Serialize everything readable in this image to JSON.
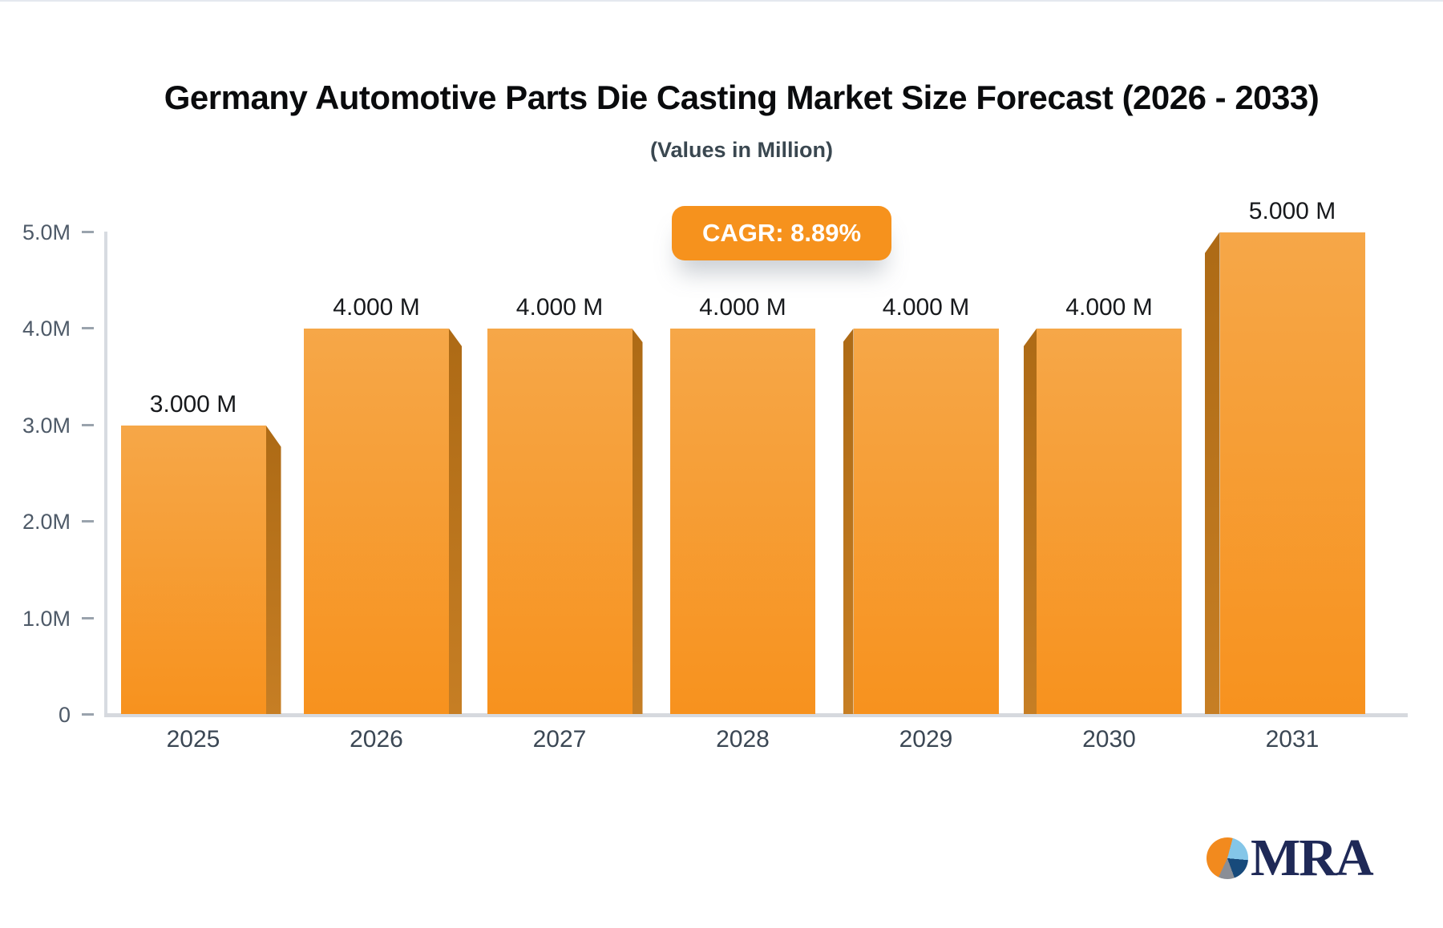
{
  "header": {
    "title": "Germany Automotive Parts Die Casting Market Size Forecast (2026 - 2033)",
    "subtitle": "(Values in Million)"
  },
  "cagr": {
    "label": "CAGR: 8.89%",
    "bg_color": "#F6921D",
    "text_color": "#FFFFFF"
  },
  "chart_data": {
    "type": "bar",
    "title": "Germany Automotive Parts Die Casting Market Size Forecast (2026 - 2033)",
    "subtitle": "(Values in Million)",
    "unit": "Million",
    "categories": [
      "2025",
      "2026",
      "2027",
      "2028",
      "2029",
      "2030",
      "2031"
    ],
    "values": [
      3.0,
      4.0,
      4.0,
      4.0,
      4.0,
      4.0,
      5.0
    ],
    "value_labels": [
      "3.000 M",
      "4.000 M",
      "4.000 M",
      "4.000 M",
      "4.000 M",
      "4.000 M",
      "5.000 M"
    ],
    "annotation": "CAGR: 8.89%",
    "ylim": [
      0,
      5
    ],
    "y_ticks": [
      {
        "value": 5,
        "label": "5.0M"
      },
      {
        "value": 4,
        "label": "4.0M"
      },
      {
        "value": 3,
        "label": "3.0M"
      },
      {
        "value": 2,
        "label": "2.0M"
      },
      {
        "value": 1,
        "label": "1.0M"
      },
      {
        "value": 0,
        "label": "0"
      }
    ],
    "grid": false,
    "legend": false,
    "bar_color_top": "#F6A748",
    "bar_color_bottom": "#F7921E",
    "bar_side_color_top": "#AD6A15",
    "bar_side_color_bottom": "#C67E24",
    "axis_color": "#D6D9DE",
    "tick_color": "#9AA3AD"
  },
  "logo": {
    "text": "MRA",
    "text_color": "#1F2957",
    "pie_colors": {
      "orange": "#F28A1E",
      "light_blue": "#84C6E8",
      "navy": "#174A7B",
      "gray": "#8A8E96"
    }
  }
}
